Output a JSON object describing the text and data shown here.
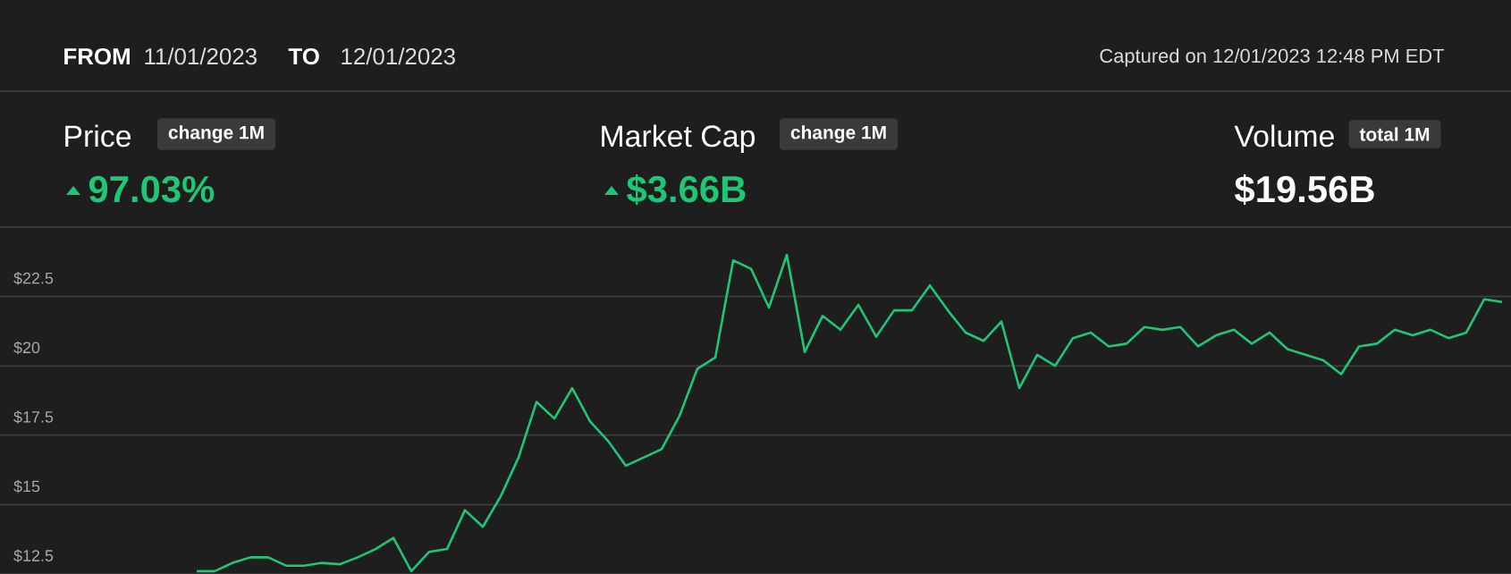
{
  "chart_data": {
    "type": "line",
    "annotations": [
      "FROM",
      "11/01/2023",
      "TO",
      "12/01/2023",
      "Captured on 12/01/2023 12:48 PM EDT",
      "Price",
      "change 1M",
      "97.03%",
      "Market Cap",
      "change 1M",
      "$3.66B",
      "Volume",
      "total 1M",
      "$19.56B"
    ],
    "categories": [
      null,
      null,
      null,
      null,
      null,
      null,
      null,
      null,
      null,
      null,
      null,
      null,
      null,
      null,
      null,
      null,
      null,
      null,
      null,
      null,
      null,
      null,
      null,
      null,
      null,
      null,
      null,
      null,
      null,
      null,
      null,
      null,
      null,
      null,
      null,
      null,
      null,
      null,
      null,
      null,
      null,
      null,
      null,
      null,
      null,
      null,
      null,
      null,
      null,
      null,
      null,
      null,
      null,
      null,
      null,
      null,
      null,
      null,
      null,
      null,
      null,
      null,
      null,
      null,
      null,
      null,
      null,
      null,
      null,
      null,
      null,
      null,
      null,
      null,
      null,
      null,
      null,
      null,
      null,
      null,
      null,
      null,
      null,
      null,
      null
    ],
    "values": [
      null,
      null,
      null,
      null,
      null,
      null,
      null,
      null,
      null,
      null,
      null,
      12.6,
      12.6,
      12.9,
      13.1,
      13.1,
      12.8,
      12.8,
      12.9,
      12.85,
      13.1,
      13.4,
      13.8,
      12.6,
      13.3,
      13.4,
      14.8,
      14.2,
      15.3,
      16.7,
      18.7,
      18.1,
      19.2,
      18.0,
      17.3,
      16.4,
      16.7,
      17.0,
      18.2,
      19.9,
      20.3,
      23.8,
      23.5,
      22.1,
      24.0,
      20.5,
      21.8,
      21.3,
      22.2,
      21.05,
      22.0,
      22.0,
      22.9,
      22.0,
      21.2,
      20.9,
      21.6,
      19.2,
      20.4,
      20.0,
      21.0,
      21.2,
      20.7,
      20.8,
      21.4,
      21.3,
      21.4,
      20.7,
      21.1,
      21.3,
      20.8,
      21.2,
      20.6,
      20.4,
      20.2,
      19.7,
      20.7,
      20.8,
      21.3,
      21.1,
      21.3,
      21.0,
      21.2,
      22.4,
      22.3
    ],
    "color": "#1ec773",
    "ylim": [
      12.5,
      25
    ],
    "yticks": [
      {
        "value": 12.5,
        "label": "$12.5"
      },
      {
        "value": 15,
        "label": "$15"
      },
      {
        "value": 17.5,
        "label": "$17.5"
      },
      {
        "value": 20,
        "label": "$20"
      },
      {
        "value": 22.5,
        "label": "$22.5"
      }
    ],
    "grid": "y",
    "tick_labels": "y"
  }
}
